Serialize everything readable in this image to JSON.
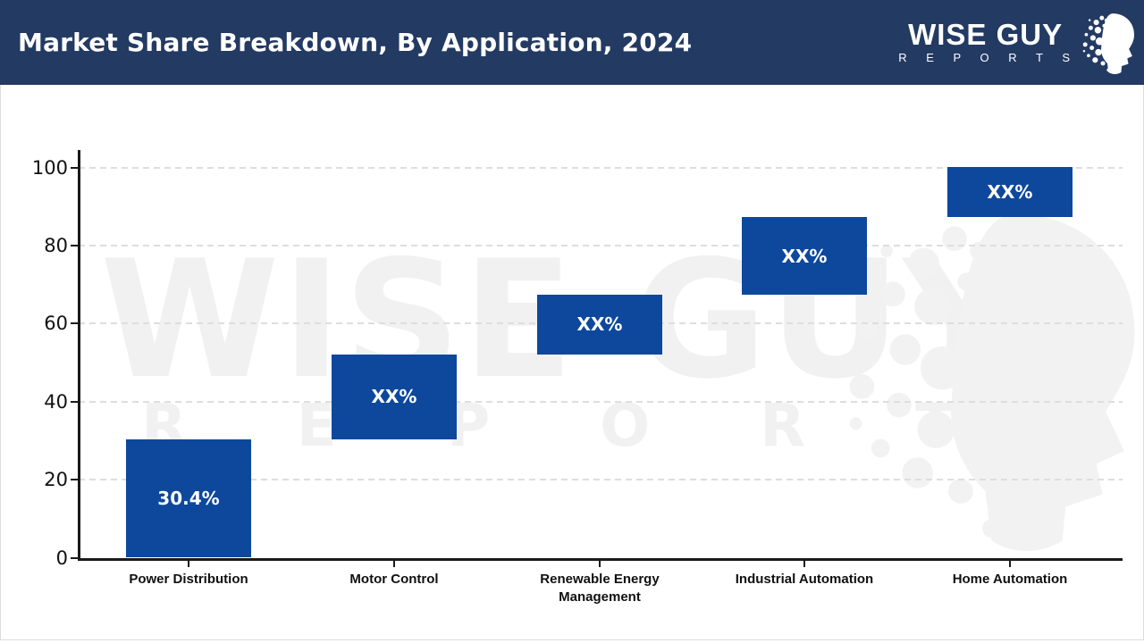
{
  "header": {
    "title": "Market Share Breakdown, By Application, 2024",
    "logo": {
      "line1": "WISE GUY",
      "line2": "R E P O R T S"
    }
  },
  "watermark": {
    "line1": "WISE GUY",
    "line2": "R E P O R T S"
  },
  "colors": {
    "header_bg": "#233A63",
    "bar": "#0D489D",
    "bar_label": "#FFFFFF",
    "axis": "#1A1A1A",
    "gridline": "#DEDEDE",
    "watermark": "#F1F1F1",
    "tick_label": "#111111"
  },
  "chart_data": {
    "type": "bar",
    "subtype": "waterfall",
    "title": "Market Share Breakdown, By Application, 2024",
    "categories": [
      "Power Distribution",
      "Motor Control",
      "Renewable Energy Management",
      "Industrial Automation",
      "Home Automation"
    ],
    "segments": [
      {
        "category": "Power Distribution",
        "start": 0,
        "end": 30.4,
        "label": "30.4%"
      },
      {
        "category": "Motor Control",
        "start": 30.4,
        "end": 52.1,
        "label": "XX%"
      },
      {
        "category": "Renewable Energy Management",
        "start": 52.1,
        "end": 67.4,
        "label": "XX%"
      },
      {
        "category": "Industrial Automation",
        "start": 67.4,
        "end": 87.2,
        "label": "XX%"
      },
      {
        "category": "Home Automation",
        "start": 87.2,
        "end": 100.1,
        "label": "XX%"
      }
    ],
    "xlabel": "",
    "ylabel": "",
    "ylim": [
      0,
      100
    ],
    "yticks": [
      0,
      20,
      40,
      60,
      80,
      100
    ],
    "grid": "horizontal-dashed",
    "legend": "none"
  }
}
